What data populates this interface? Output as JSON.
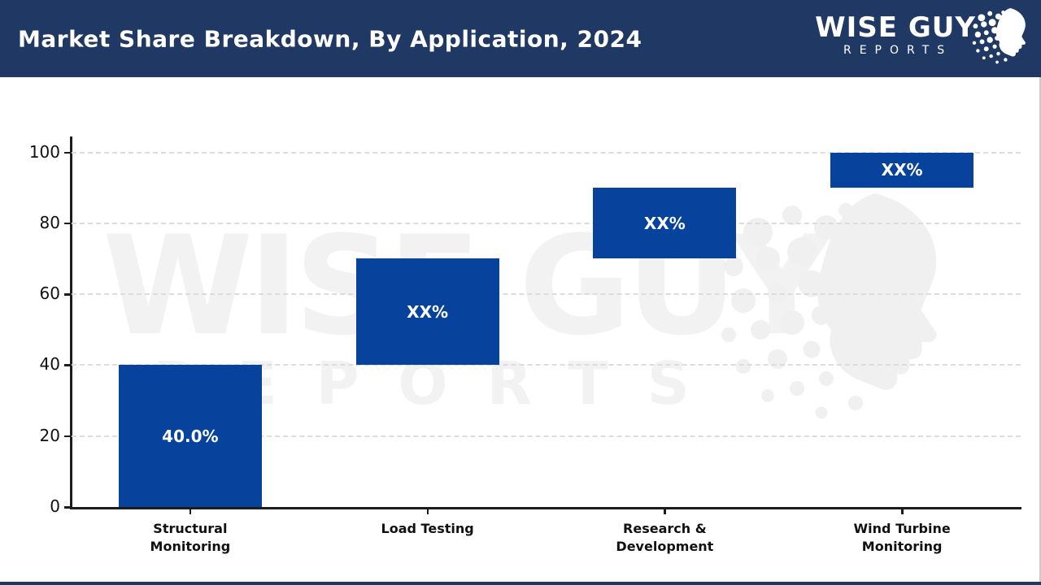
{
  "header": {
    "title": "Market Share Breakdown, By Application, 2024",
    "logo": {
      "line1": "WISE GUY",
      "line2": "REPORTS"
    }
  },
  "watermark": {
    "line1": "WISE GUY",
    "line2": "REPORTS"
  },
  "colors": {
    "header_bg": "#203864",
    "bar": "#07439c",
    "grid": "#dcdcdc",
    "axis": "#1c1c1c",
    "watermark": "#f2f2f2",
    "bottom_strip": "#203864",
    "bar_label": "#ffffff"
  },
  "chart_data": {
    "type": "bar",
    "subtype": "waterfall",
    "title": "Market Share Breakdown, By Application, 2024",
    "categories": [
      "Structural\nMonitoring",
      "Load Testing",
      "Research &\nDevelopment",
      "Wind Turbine\nMonitoring"
    ],
    "segments": [
      {
        "category": "Structural Monitoring",
        "start": 0,
        "end": 40,
        "label": "40.0%"
      },
      {
        "category": "Load Testing",
        "start": 40,
        "end": 70,
        "label": "XX%"
      },
      {
        "category": "Research & Development",
        "start": 70,
        "end": 90,
        "label": "XX%"
      },
      {
        "category": "Wind Turbine Monitoring",
        "start": 90,
        "end": 100,
        "label": "XX%"
      }
    ],
    "yticks": [
      0,
      20,
      40,
      60,
      80,
      100
    ],
    "ylim": [
      0,
      100
    ],
    "xlabel": "",
    "ylabel": "",
    "grid": "horizontal-dashed",
    "legend": "none",
    "bar_color": "#07439c",
    "bar_label_color": "#ffffff"
  }
}
